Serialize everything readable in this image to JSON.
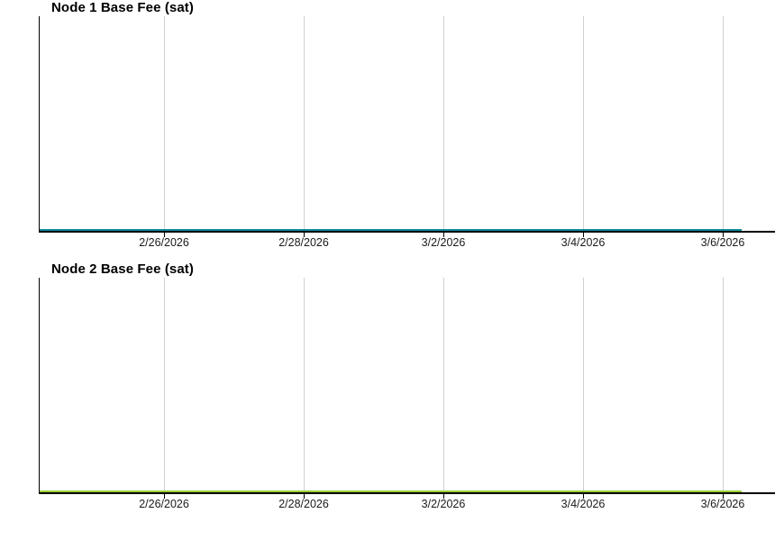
{
  "page": {
    "background_color": "#ffffff",
    "axis_color": "#000000",
    "gridline_color": "#d0d0d0",
    "tick_label_color": "#1a1a1a"
  },
  "chart_data": [
    {
      "type": "line",
      "title": "Node 1 Base Fee (sat)",
      "xlabel": "",
      "ylabel": "",
      "x_tick_labels": [
        "2/26/2026",
        "2/28/2026",
        "3/2/2026",
        "3/4/2026",
        "3/6/2026"
      ],
      "y_tick_labels": [],
      "grid": "vertical-only",
      "legend": false,
      "series": [
        {
          "name": "Node 1 Base Fee (sat)",
          "color": "#0c8c9c",
          "x": [
            "2/26/2026",
            "2/28/2026",
            "3/2/2026",
            "3/4/2026",
            "3/6/2026"
          ],
          "values": [
            0,
            0,
            0,
            0,
            0
          ],
          "shape": "flat line along the x-axis (constant value 0)"
        }
      ]
    },
    {
      "type": "line",
      "title": "Node 2 Base Fee (sat)",
      "xlabel": "",
      "ylabel": "",
      "x_tick_labels": [
        "2/26/2026",
        "2/28/2026",
        "3/2/2026",
        "3/4/2026",
        "3/6/2026"
      ],
      "y_tick_labels": [],
      "grid": "vertical-only",
      "legend": false,
      "series": [
        {
          "name": "Node 2 Base Fee (sat)",
          "color": "#9acd32",
          "x": [
            "2/26/2026",
            "2/28/2026",
            "3/2/2026",
            "3/4/2026",
            "3/6/2026"
          ],
          "values": [
            0,
            0,
            0,
            0,
            0
          ],
          "shape": "flat line along the x-axis (constant value 0)"
        }
      ]
    }
  ]
}
